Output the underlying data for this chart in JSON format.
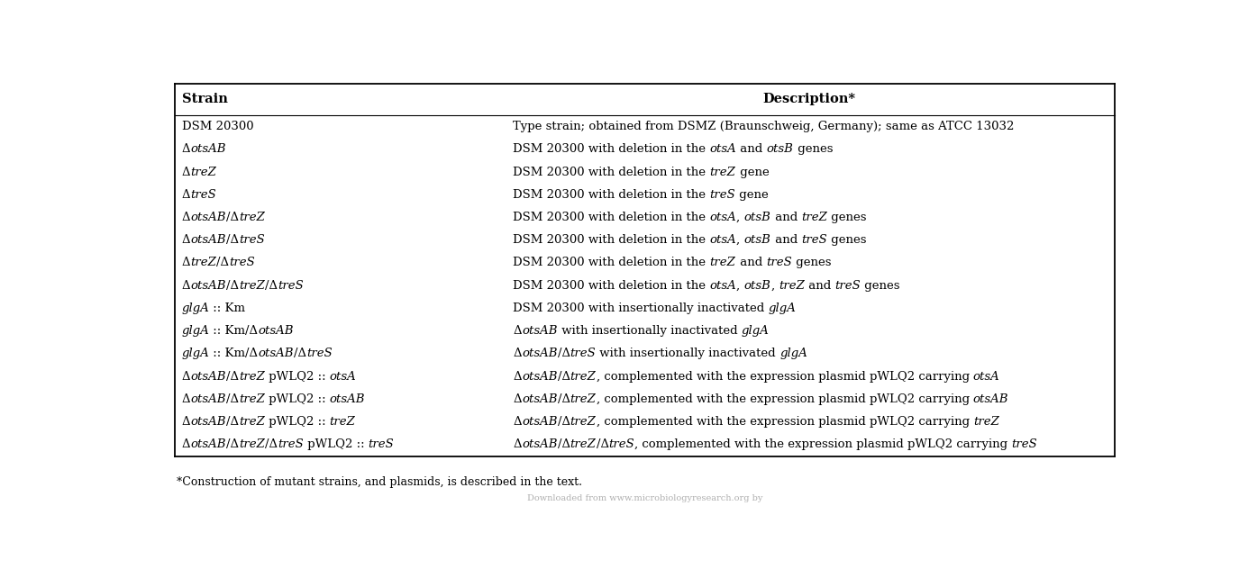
{
  "col1_header": "Strain",
  "col2_header": "Description*",
  "rows": [
    {
      "strain": [
        [
          "DSM 20300",
          false
        ]
      ],
      "desc": [
        [
          "Type strain; obtained from DSMZ (Braunschweig, Germany); same as ATCC 13032",
          false
        ]
      ]
    },
    {
      "strain": [
        [
          "Δ",
          false
        ],
        [
          "otsAB",
          true
        ]
      ],
      "desc": [
        [
          "DSM 20300 with deletion in the ",
          false
        ],
        [
          "otsA",
          true
        ],
        [
          " and ",
          false
        ],
        [
          "otsB",
          true
        ],
        [
          " genes",
          false
        ]
      ]
    },
    {
      "strain": [
        [
          "Δ",
          false
        ],
        [
          "treZ",
          true
        ]
      ],
      "desc": [
        [
          "DSM 20300 with deletion in the ",
          false
        ],
        [
          "treZ",
          true
        ],
        [
          " gene",
          false
        ]
      ]
    },
    {
      "strain": [
        [
          "Δ",
          false
        ],
        [
          "treS",
          true
        ]
      ],
      "desc": [
        [
          "DSM 20300 with deletion in the ",
          false
        ],
        [
          "treS",
          true
        ],
        [
          " gene",
          false
        ]
      ]
    },
    {
      "strain": [
        [
          "Δ",
          false
        ],
        [
          "otsAB",
          true
        ],
        [
          "/Δ",
          false
        ],
        [
          "treZ",
          true
        ]
      ],
      "desc": [
        [
          "DSM 20300 with deletion in the ",
          false
        ],
        [
          "otsA",
          true
        ],
        [
          ", ",
          false
        ],
        [
          "otsB",
          true
        ],
        [
          " and ",
          false
        ],
        [
          "treZ",
          true
        ],
        [
          " genes",
          false
        ]
      ]
    },
    {
      "strain": [
        [
          "Δ",
          false
        ],
        [
          "otsAB",
          true
        ],
        [
          "/Δ",
          false
        ],
        [
          "treS",
          true
        ]
      ],
      "desc": [
        [
          "DSM 20300 with deletion in the ",
          false
        ],
        [
          "otsA",
          true
        ],
        [
          ", ",
          false
        ],
        [
          "otsB",
          true
        ],
        [
          " and ",
          false
        ],
        [
          "treS",
          true
        ],
        [
          " genes",
          false
        ]
      ]
    },
    {
      "strain": [
        [
          "Δ",
          false
        ],
        [
          "treZ",
          true
        ],
        [
          "/Δ",
          false
        ],
        [
          "treS",
          true
        ]
      ],
      "desc": [
        [
          "DSM 20300 with deletion in the ",
          false
        ],
        [
          "treZ",
          true
        ],
        [
          " and ",
          false
        ],
        [
          "treS",
          true
        ],
        [
          " genes",
          false
        ]
      ]
    },
    {
      "strain": [
        [
          "Δ",
          false
        ],
        [
          "otsAB",
          true
        ],
        [
          "/Δ",
          false
        ],
        [
          "treZ",
          true
        ],
        [
          "/Δ",
          false
        ],
        [
          "treS",
          true
        ]
      ],
      "desc": [
        [
          "DSM 20300 with deletion in the ",
          false
        ],
        [
          "otsA",
          true
        ],
        [
          ", ",
          false
        ],
        [
          "otsB",
          true
        ],
        [
          ", ",
          false
        ],
        [
          "treZ",
          true
        ],
        [
          " and ",
          false
        ],
        [
          "treS",
          true
        ],
        [
          " genes",
          false
        ]
      ]
    },
    {
      "strain": [
        [
          "glgA",
          true
        ],
        [
          " :: Km",
          false
        ]
      ],
      "desc": [
        [
          "DSM 20300 with insertionally inactivated ",
          false
        ],
        [
          "glgA",
          true
        ]
      ]
    },
    {
      "strain": [
        [
          "glgA",
          true
        ],
        [
          " :: Km/Δ",
          false
        ],
        [
          "otsAB",
          true
        ]
      ],
      "desc": [
        [
          "Δ",
          false
        ],
        [
          "otsAB",
          true
        ],
        [
          " with insertionally inactivated ",
          false
        ],
        [
          "glgA",
          true
        ]
      ]
    },
    {
      "strain": [
        [
          "glgA",
          true
        ],
        [
          " :: Km/Δ",
          false
        ],
        [
          "otsAB",
          true
        ],
        [
          "/Δ",
          false
        ],
        [
          "treS",
          true
        ]
      ],
      "desc": [
        [
          "Δ",
          false
        ],
        [
          "otsAB",
          true
        ],
        [
          "/Δ",
          false
        ],
        [
          "treS",
          true
        ],
        [
          " with insertionally inactivated ",
          false
        ],
        [
          "glgA",
          true
        ]
      ]
    },
    {
      "strain": [
        [
          "Δ",
          false
        ],
        [
          "otsAB",
          true
        ],
        [
          "/Δ",
          false
        ],
        [
          "treZ",
          true
        ],
        [
          " pWLQ2 :: ",
          false
        ],
        [
          "otsA",
          true
        ]
      ],
      "desc": [
        [
          "Δ",
          false
        ],
        [
          "otsAB",
          true
        ],
        [
          "/Δ",
          false
        ],
        [
          "treZ",
          true
        ],
        [
          ", complemented with the expression plasmid pWLQ2 carrying ",
          false
        ],
        [
          "otsA",
          true
        ]
      ]
    },
    {
      "strain": [
        [
          "Δ",
          false
        ],
        [
          "otsAB",
          true
        ],
        [
          "/Δ",
          false
        ],
        [
          "treZ",
          true
        ],
        [
          " pWLQ2 :: ",
          false
        ],
        [
          "otsAB",
          true
        ]
      ],
      "desc": [
        [
          "Δ",
          false
        ],
        [
          "otsAB",
          true
        ],
        [
          "/Δ",
          false
        ],
        [
          "treZ",
          true
        ],
        [
          ", complemented with the expression plasmid pWLQ2 carrying ",
          false
        ],
        [
          "otsAB",
          true
        ]
      ]
    },
    {
      "strain": [
        [
          "Δ",
          false
        ],
        [
          "otsAB",
          true
        ],
        [
          "/Δ",
          false
        ],
        [
          "treZ",
          true
        ],
        [
          " pWLQ2 :: ",
          false
        ],
        [
          "treZ",
          true
        ]
      ],
      "desc": [
        [
          "Δ",
          false
        ],
        [
          "otsAB",
          true
        ],
        [
          "/Δ",
          false
        ],
        [
          "treZ",
          true
        ],
        [
          ", complemented with the expression plasmid pWLQ2 carrying ",
          false
        ],
        [
          "treZ",
          true
        ]
      ]
    },
    {
      "strain": [
        [
          "Δ",
          false
        ],
        [
          "otsAB",
          true
        ],
        [
          "/Δ",
          false
        ],
        [
          "treZ",
          true
        ],
        [
          "/Δ",
          false
        ],
        [
          "treS",
          true
        ],
        [
          " pWLQ2 :: ",
          false
        ],
        [
          "treS",
          true
        ]
      ],
      "desc": [
        [
          "Δ",
          false
        ],
        [
          "otsAB",
          true
        ],
        [
          "/Δ",
          false
        ],
        [
          "treZ",
          true
        ],
        [
          "/Δ",
          false
        ],
        [
          "treS",
          true
        ],
        [
          ", complemented with the expression plasmid pWLQ2 carrying ",
          false
        ],
        [
          "treS",
          true
        ]
      ]
    }
  ],
  "footnote": "*Construction of mutant strains, and plasmids, is described in the text.",
  "watermark": "Downloaded from www.microbiologyresearch.org by",
  "bg_color": "#ffffff",
  "font_size": 9.5,
  "header_font_size": 10.5
}
